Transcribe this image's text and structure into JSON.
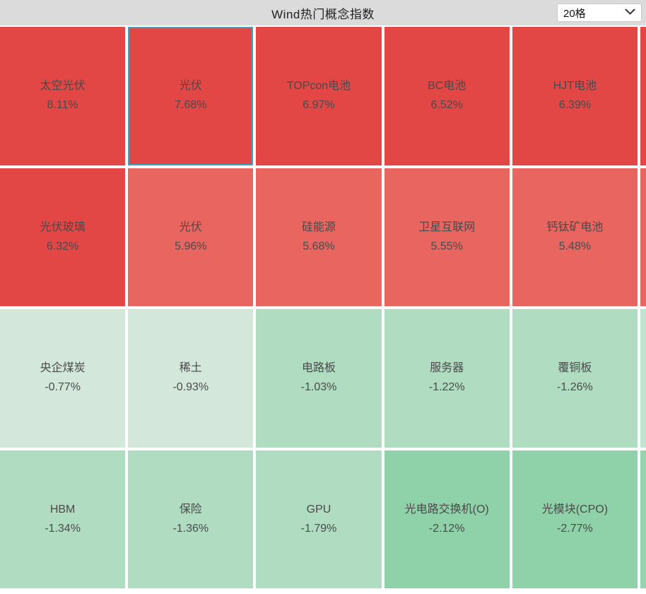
{
  "header": {
    "title": "Wind热门概念指数",
    "grid_size_value": "20格",
    "chevron_icon": "chevron-down"
  },
  "colors": {
    "header_bg": "#dbdbdb",
    "cell_text": "#4a4a4a",
    "selected_border": "#3ea3c3",
    "gain_strong": "#e24745",
    "gain_mild": "#e96560",
    "loss_faint": "#d3e7db",
    "loss_mild": "#b0dcc2",
    "loss_strong": "#8fd1a8"
  },
  "chart_data": {
    "type": "heatmap",
    "title": "Wind热门概念指数",
    "rows": 4,
    "cols": 5,
    "grid_size_label": "20格",
    "legend": "red = gain, green = loss; darker = larger magnitude",
    "cells": [
      {
        "name": "太空光伏",
        "value": 8.11,
        "pct": "8.11%",
        "color": "#e24745",
        "selected": false
      },
      {
        "name": "光伏",
        "value": 7.68,
        "pct": "7.68%",
        "color": "#e24745",
        "selected": true
      },
      {
        "name": "TOPcon电池",
        "value": 6.97,
        "pct": "6.97%",
        "color": "#e24745",
        "selected": false
      },
      {
        "name": "BC电池",
        "value": 6.52,
        "pct": "6.52%",
        "color": "#e24745",
        "selected": false
      },
      {
        "name": "HJT电池",
        "value": 6.39,
        "pct": "6.39%",
        "color": "#e24745",
        "selected": false
      },
      {
        "name": "光伏玻璃",
        "value": 6.32,
        "pct": "6.32%",
        "color": "#e24745",
        "selected": false
      },
      {
        "name": "光伏",
        "value": 5.96,
        "pct": "5.96%",
        "color": "#e96560",
        "selected": false
      },
      {
        "name": "硅能源",
        "value": 5.68,
        "pct": "5.68%",
        "color": "#e96560",
        "selected": false
      },
      {
        "name": "卫星互联网",
        "value": 5.55,
        "pct": "5.55%",
        "color": "#e96560",
        "selected": false
      },
      {
        "name": "钙钛矿电池",
        "value": 5.48,
        "pct": "5.48%",
        "color": "#e96560",
        "selected": false
      },
      {
        "name": "央企煤炭",
        "value": -0.77,
        "pct": "-0.77%",
        "color": "#d3e7db",
        "selected": false
      },
      {
        "name": "稀土",
        "value": -0.93,
        "pct": "-0.93%",
        "color": "#d3e7db",
        "selected": false
      },
      {
        "name": "电路板",
        "value": -1.03,
        "pct": "-1.03%",
        "color": "#b0dcc2",
        "selected": false
      },
      {
        "name": "服务器",
        "value": -1.22,
        "pct": "-1.22%",
        "color": "#b0dcc2",
        "selected": false
      },
      {
        "name": "覆铜板",
        "value": -1.26,
        "pct": "-1.26%",
        "color": "#b0dcc2",
        "selected": false
      },
      {
        "name": "HBM",
        "value": -1.34,
        "pct": "-1.34%",
        "color": "#b0dcc2",
        "selected": false
      },
      {
        "name": "保险",
        "value": -1.36,
        "pct": "-1.36%",
        "color": "#b0dcc2",
        "selected": false
      },
      {
        "name": "GPU",
        "value": -1.79,
        "pct": "-1.79%",
        "color": "#b0dcc2",
        "selected": false
      },
      {
        "name": "光电路交换机(O)",
        "value": -2.12,
        "pct": "-2.12%",
        "color": "#8fd1a8",
        "selected": false
      },
      {
        "name": "光模块(CPO)",
        "value": -2.77,
        "pct": "-2.77%",
        "color": "#8fd1a8",
        "selected": false
      }
    ],
    "edge_slivers": [
      "#e24745",
      "#e96560",
      "#c2e3d0",
      "#95d4ad"
    ]
  }
}
